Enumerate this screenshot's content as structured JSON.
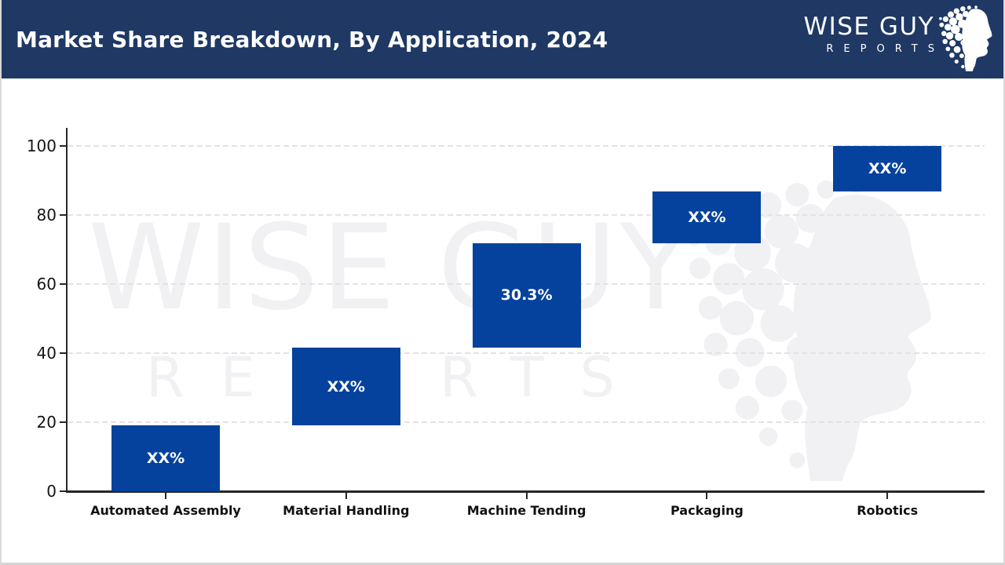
{
  "header": {
    "title": "Market Share Breakdown, By Application, 2024",
    "bg_color": "#1F3864",
    "logo": {
      "name": "WISE GUY",
      "tagline": "REPORTS",
      "icon": "head-dots-icon"
    }
  },
  "watermark": {
    "line1": "WISE GUY",
    "line2": "REPORTS"
  },
  "chart_data": {
    "type": "bar",
    "subtype": "waterfall-breakdown",
    "title": "Market Share Breakdown, By Application, 2024",
    "categories": [
      "Automated Assembly",
      "Material Handling",
      "Machine Tending",
      "Packaging",
      "Robotics"
    ],
    "segments": [
      {
        "category": "Automated Assembly",
        "start": 0,
        "end": 19,
        "label": "XX%"
      },
      {
        "category": "Material Handling",
        "start": 19,
        "end": 41.6,
        "label": "XX%"
      },
      {
        "category": "Machine Tending",
        "start": 41.6,
        "end": 71.9,
        "label": "30.3%",
        "value": 30.3
      },
      {
        "category": "Packaging",
        "start": 71.9,
        "end": 86.9,
        "label": "XX%"
      },
      {
        "category": "Robotics",
        "start": 86.9,
        "end": 100,
        "label": "XX%"
      }
    ],
    "ylim": [
      0,
      100
    ],
    "yticks": [
      0,
      20,
      40,
      60,
      80,
      100
    ],
    "grid": {
      "orientation": "horizontal",
      "style": "dashed",
      "color": "#E3E3E3"
    },
    "legend": null,
    "bar_color": "#05429D",
    "bar_label_color": "#FFFFFF",
    "axis_color": "#262626"
  }
}
